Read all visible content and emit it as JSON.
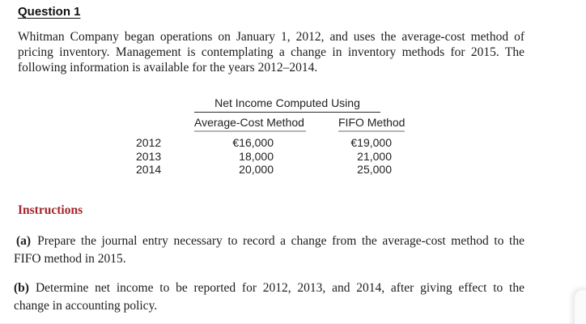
{
  "page": {
    "title": "Question 1"
  },
  "intro": {
    "lines": [
      "Whitman Company began operations on January 1, 2012, and uses the average-cost method of",
      "pricing inventory. Management is contemplating a change in inventory methods for 2015. The",
      "following information is available for the years 2012–2014."
    ]
  },
  "table": {
    "title": "Net Income Computed Using",
    "columns": [
      "Average-Cost Method",
      "FIFO Method"
    ],
    "rows": [
      {
        "year": "2012",
        "avg": "€16,000",
        "fifo": "€19,000"
      },
      {
        "year": "2013",
        "avg": "18,000",
        "fifo": "21,000"
      },
      {
        "year": "2014",
        "avg": "20,000",
        "fifo": "25,000"
      }
    ]
  },
  "instructions": {
    "heading": "Instructions",
    "items": [
      {
        "label": "(a)",
        "lines": [
          "Prepare the journal entry necessary to record a change from the average-cost method to the",
          "FIFO method in 2015."
        ]
      },
      {
        "label": "(b)",
        "lines": [
          "Determine net income to be reported for 2012, 2013, and 2014, after giving effect to the",
          "change in accounting policy."
        ]
      }
    ]
  },
  "colors": {
    "instructions_heading": "#a4262c",
    "body_text": "#1d1d1d",
    "table_text": "#232021",
    "group_rule": "#2b2b2b",
    "column_underline": "#b4b4b4"
  }
}
